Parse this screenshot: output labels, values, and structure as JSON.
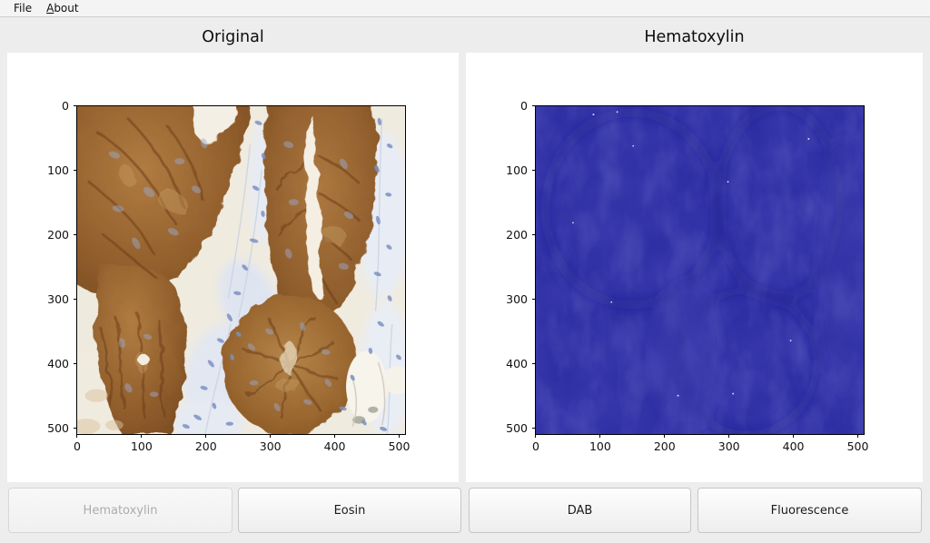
{
  "menubar": {
    "file": "File",
    "about_accel": "A",
    "about_rest": "bout"
  },
  "panels": {
    "left": {
      "title": "Original"
    },
    "right": {
      "title": "Hematoxylin"
    }
  },
  "plots": {
    "xticks": [
      "0",
      "100",
      "200",
      "300",
      "400",
      "500"
    ],
    "yticks": [
      "0",
      "100",
      "200",
      "300",
      "400",
      "500"
    ],
    "axis_range": [
      0,
      512
    ]
  },
  "buttons": {
    "hematoxylin": {
      "label": "Hematoxylin",
      "state": "disabled"
    },
    "eosin": {
      "label": "Eosin",
      "state": "enabled"
    },
    "dab": {
      "label": "DAB",
      "state": "enabled"
    },
    "fluorescence": {
      "label": "Fluorescence",
      "state": "enabled"
    }
  },
  "colors": {
    "hematoxylin_blue": "#2f2fa4",
    "dab_brown": "#92602e",
    "window_bg": "#ededed",
    "panel_bg": "#ffffff"
  }
}
